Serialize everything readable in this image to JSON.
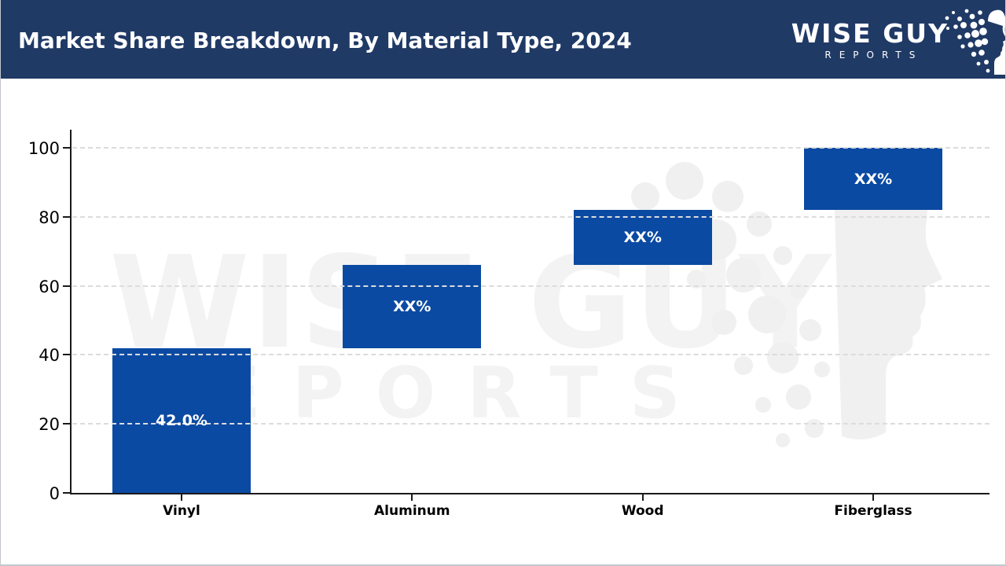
{
  "header": {
    "title": "Market Share Breakdown, By Material Type, 2024",
    "logo": {
      "line1": "WISE GUY",
      "line2": "REPORTS"
    }
  },
  "watermark": {
    "line1": "WISE GUY",
    "line2": "REPORTS"
  },
  "colors": {
    "header_bg": "#203a66",
    "bar_fill": "#0b4aa2",
    "bar_label_text": "#ffffff",
    "gridline": "#dcdcdc",
    "axis": "#1a1a1a",
    "tick_label": "#000000",
    "watermark_grey": "#f3f3f3",
    "page_border": "#c3c8cd"
  },
  "chart_data": {
    "type": "bar",
    "subtype": "waterfall",
    "title": "Market Share Breakdown, By Material Type, 2024",
    "categories": [
      "Vinyl",
      "Aluminum",
      "Wood",
      "Fiberglass"
    ],
    "segments": [
      {
        "category": "Vinyl",
        "start": 0,
        "end": 42,
        "label": "42.0%"
      },
      {
        "category": "Aluminum",
        "start": 42,
        "end": 66,
        "label": "XX%"
      },
      {
        "category": "Wood",
        "start": 66,
        "end": 82,
        "label": "XX%"
      },
      {
        "category": "Fiberglass",
        "start": 82,
        "end": 100,
        "label": "XX%"
      }
    ],
    "ylim": [
      0,
      100
    ],
    "yticks": [
      0,
      20,
      40,
      60,
      80,
      100
    ],
    "xlabel": "",
    "ylabel": "",
    "grid": "horizontal-dashed",
    "legend": null
  }
}
